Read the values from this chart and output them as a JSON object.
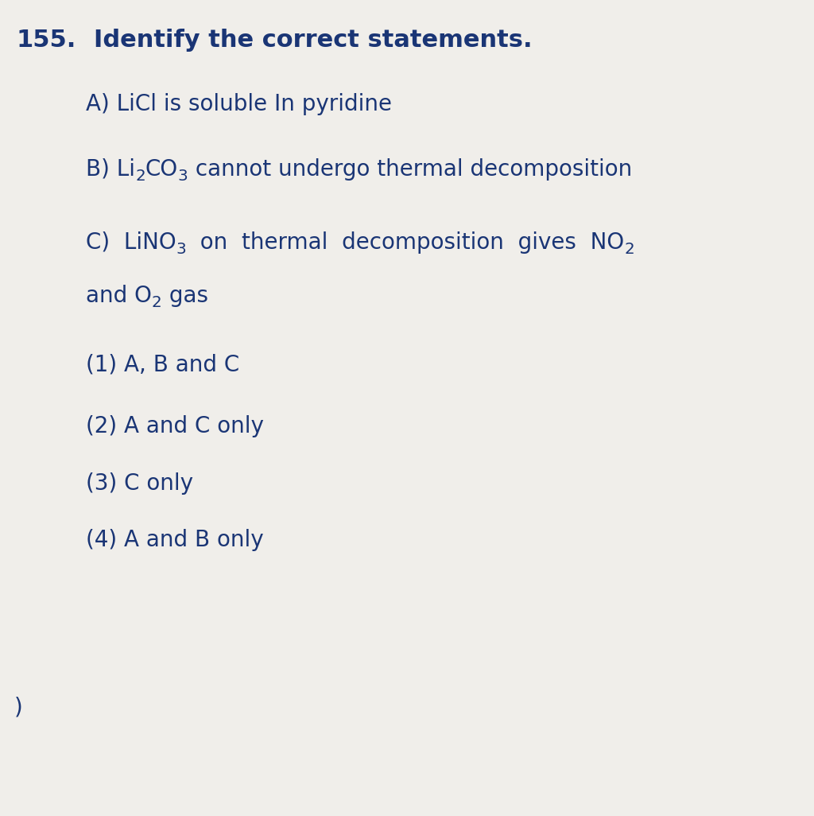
{
  "bg_color": "#f0eeea",
  "text_color": "#1a3575",
  "question_num": "155.",
  "question_text": "Identify the correct statements.",
  "answers": [
    "(1) A, B and C",
    "(2) A and C only",
    "(3) C only",
    "(4) A and B only"
  ],
  "footnote": ")",
  "font_size": 20
}
